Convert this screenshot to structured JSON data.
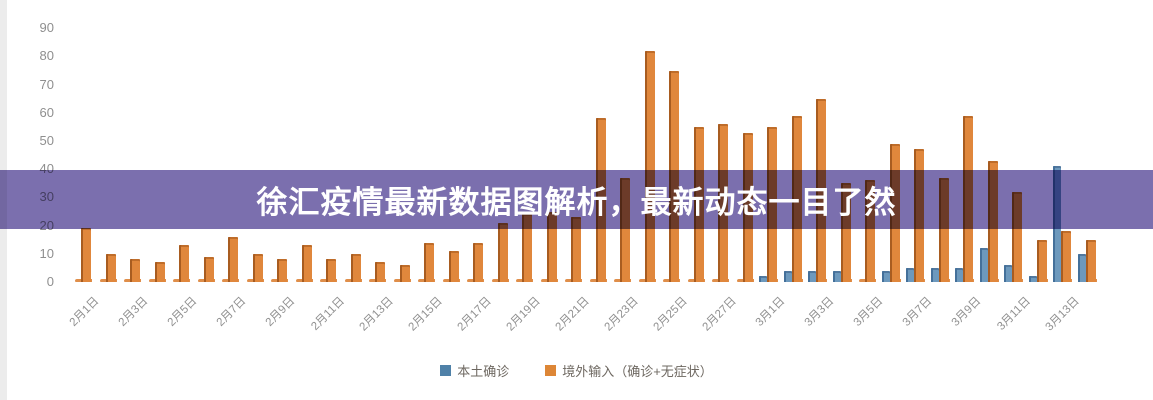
{
  "banner": {
    "title": "徐汇疫情最新数据图解析，最新动态一目了然",
    "bg_color": "#7b6fae",
    "text_color": "#ffffff"
  },
  "chart_data": {
    "type": "bar",
    "title": "",
    "xlabel": "",
    "ylabel": "",
    "ylim": [
      0,
      90
    ],
    "yticks": [
      0,
      10,
      20,
      30,
      40,
      50,
      60,
      70,
      80,
      90
    ],
    "grid": false,
    "legend_position": "bottom",
    "x_tick_step": 2,
    "categories": [
      "2月1日",
      "2月2日",
      "2月3日",
      "2月4日",
      "2月5日",
      "2月6日",
      "2月7日",
      "2月8日",
      "2月9日",
      "2月10日",
      "2月11日",
      "2月12日",
      "2月13日",
      "2月14日",
      "2月15日",
      "2月16日",
      "2月17日",
      "2月18日",
      "2月19日",
      "2月20日",
      "2月21日",
      "2月22日",
      "2月23日",
      "2月24日",
      "2月25日",
      "2月26日",
      "2月27日",
      "2月28日",
      "3月1日",
      "3月2日",
      "3月3日",
      "3月4日",
      "3月5日",
      "3月6日",
      "3月7日",
      "3月8日",
      "3月9日",
      "3月10日",
      "3月11日",
      "3月12日",
      "3月13日",
      "3月14日"
    ],
    "series": [
      {
        "name": "本土确诊",
        "color": "#4f81a8",
        "values": [
          0,
          0,
          0,
          0,
          0,
          0,
          0,
          0,
          0,
          0,
          0,
          0,
          0,
          0,
          0,
          0,
          0,
          0,
          0,
          0,
          0,
          0,
          0,
          0,
          0,
          0,
          0,
          0,
          2,
          4,
          4,
          4,
          0,
          4,
          5,
          5,
          5,
          12,
          6,
          2,
          41,
          10
        ]
      },
      {
        "name": "境外输入（确诊+无症状）",
        "color": "#dd8636",
        "values": [
          19,
          10,
          8,
          7,
          13,
          9,
          16,
          10,
          8,
          13,
          8,
          10,
          7,
          6,
          14,
          11,
          14,
          21,
          24,
          25,
          23,
          58,
          37,
          82,
          75,
          55,
          56,
          53,
          55,
          59,
          65,
          35,
          36,
          49,
          47,
          37,
          59,
          43,
          32,
          15,
          18,
          15
        ]
      }
    ]
  }
}
